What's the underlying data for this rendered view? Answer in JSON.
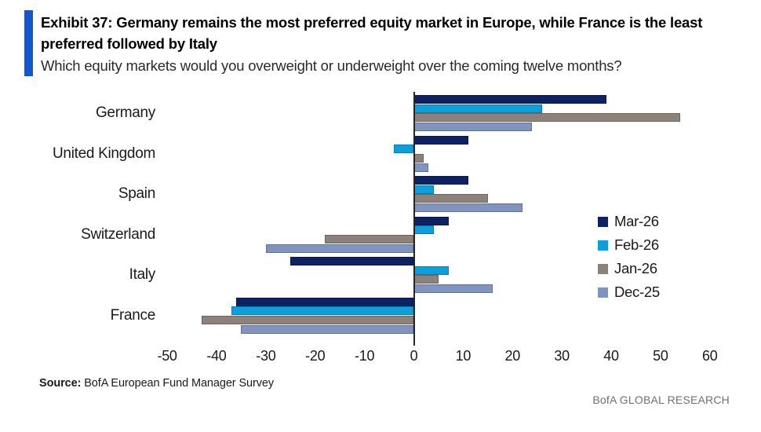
{
  "header": {
    "exhibit_title": "Exhibit 37: Germany remains the most preferred equity market in Europe, while France is the least preferred followed by Italy",
    "subtitle": "Which equity markets would you overweight or underweight over the coming twelve months?"
  },
  "chart_data": {
    "type": "bar",
    "orientation": "horizontal",
    "title": "",
    "xlabel": "",
    "ylabel": "",
    "categories": [
      "Germany",
      "United Kingdom",
      "Spain",
      "Switzerland",
      "Italy",
      "France"
    ],
    "series": [
      {
        "name": "Mar-26",
        "color": "#0e2162",
        "values": [
          39,
          11,
          11,
          7,
          -25,
          -36
        ]
      },
      {
        "name": "Feb-26",
        "color": "#0c9fde",
        "values": [
          26,
          -4,
          4,
          4,
          7,
          -37
        ]
      },
      {
        "name": "Jan-26",
        "color": "#8d827b",
        "values": [
          54,
          2,
          15,
          -18,
          5,
          -43
        ]
      },
      {
        "name": "Dec-25",
        "color": "#8094bd",
        "values": [
          24,
          3,
          22,
          -30,
          16,
          -35
        ]
      }
    ],
    "xlim": [
      -50,
      60
    ],
    "x_ticks": [
      -50,
      -40,
      -30,
      -20,
      -10,
      0,
      10,
      20,
      30,
      40,
      50,
      60
    ],
    "grid": false,
    "legend_position": "right"
  },
  "footer": {
    "source_label": "Source:",
    "source_text": " BofA European Fund Manager Survey",
    "brand": "BofA GLOBAL RESEARCH"
  },
  "colors": {
    "accent_bar": "#1157cd",
    "zero_line": "#262626"
  }
}
